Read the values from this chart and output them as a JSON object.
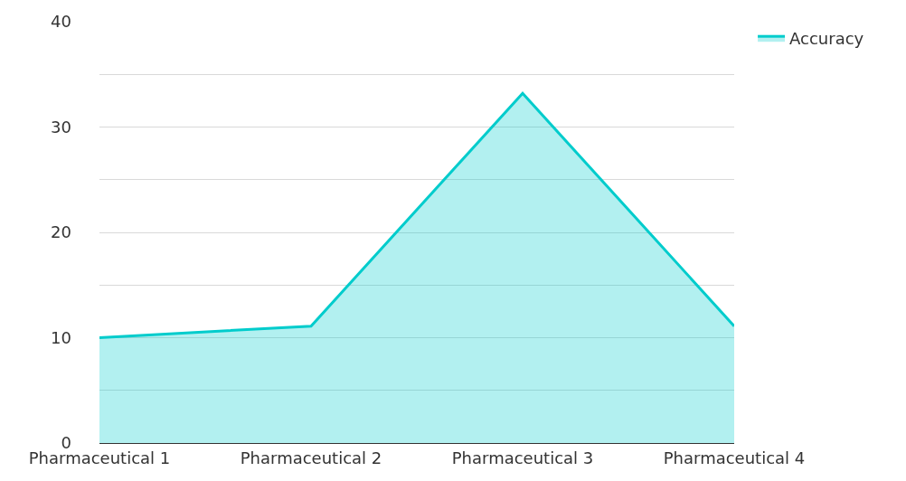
{
  "chart_data": {
    "type": "area",
    "categories": [
      "Pharmaceutical 1",
      "Pharmaceutical 2",
      "Pharmaceutical 3",
      "Pharmaceutical 4"
    ],
    "series": [
      {
        "name": "Accuracy",
        "color": "#00cccc",
        "values": [
          10,
          11.1,
          33.2,
          11.1
        ]
      }
    ],
    "ylim": [
      0,
      40
    ],
    "yticks": [
      0,
      {
        "value": 5,
        "label": null
      },
      10,
      {
        "value": 15,
        "label": null
      },
      20,
      {
        "value": 25,
        "label": null
      },
      30,
      {
        "value": 35,
        "label": null
      },
      40
    ],
    "grid": "y",
    "legend": "top right",
    "marker": "none",
    "line_style": "solid"
  }
}
